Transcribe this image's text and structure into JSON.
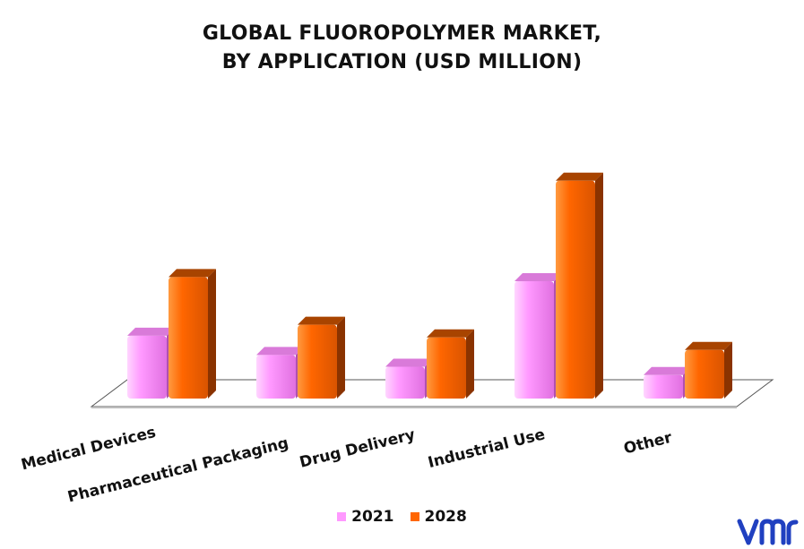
{
  "chart_data": {
    "type": "bar",
    "title_lines": [
      "GLOBAL FLUOROPOLYMER MARKET,",
      "BY APPLICATION (USD MILLION)"
    ],
    "categories": [
      "Medical Devices",
      "Pharmaceutical Packaging",
      "Drug Delivery",
      "Industrial Use",
      "Other"
    ],
    "series": [
      {
        "name": "2021",
        "values": [
          75,
          52,
          38,
          140,
          28
        ],
        "color": "#ff99ff"
      },
      {
        "name": "2028",
        "values": [
          145,
          88,
          73,
          260,
          58
        ],
        "color": "#ff6600"
      }
    ],
    "ylim": [
      0,
      280
    ],
    "grid": false,
    "legend_position": "bottom",
    "style": "3d"
  },
  "logo": {
    "name": "vmr-logo",
    "text": "vmr",
    "color": "#2040c0"
  }
}
